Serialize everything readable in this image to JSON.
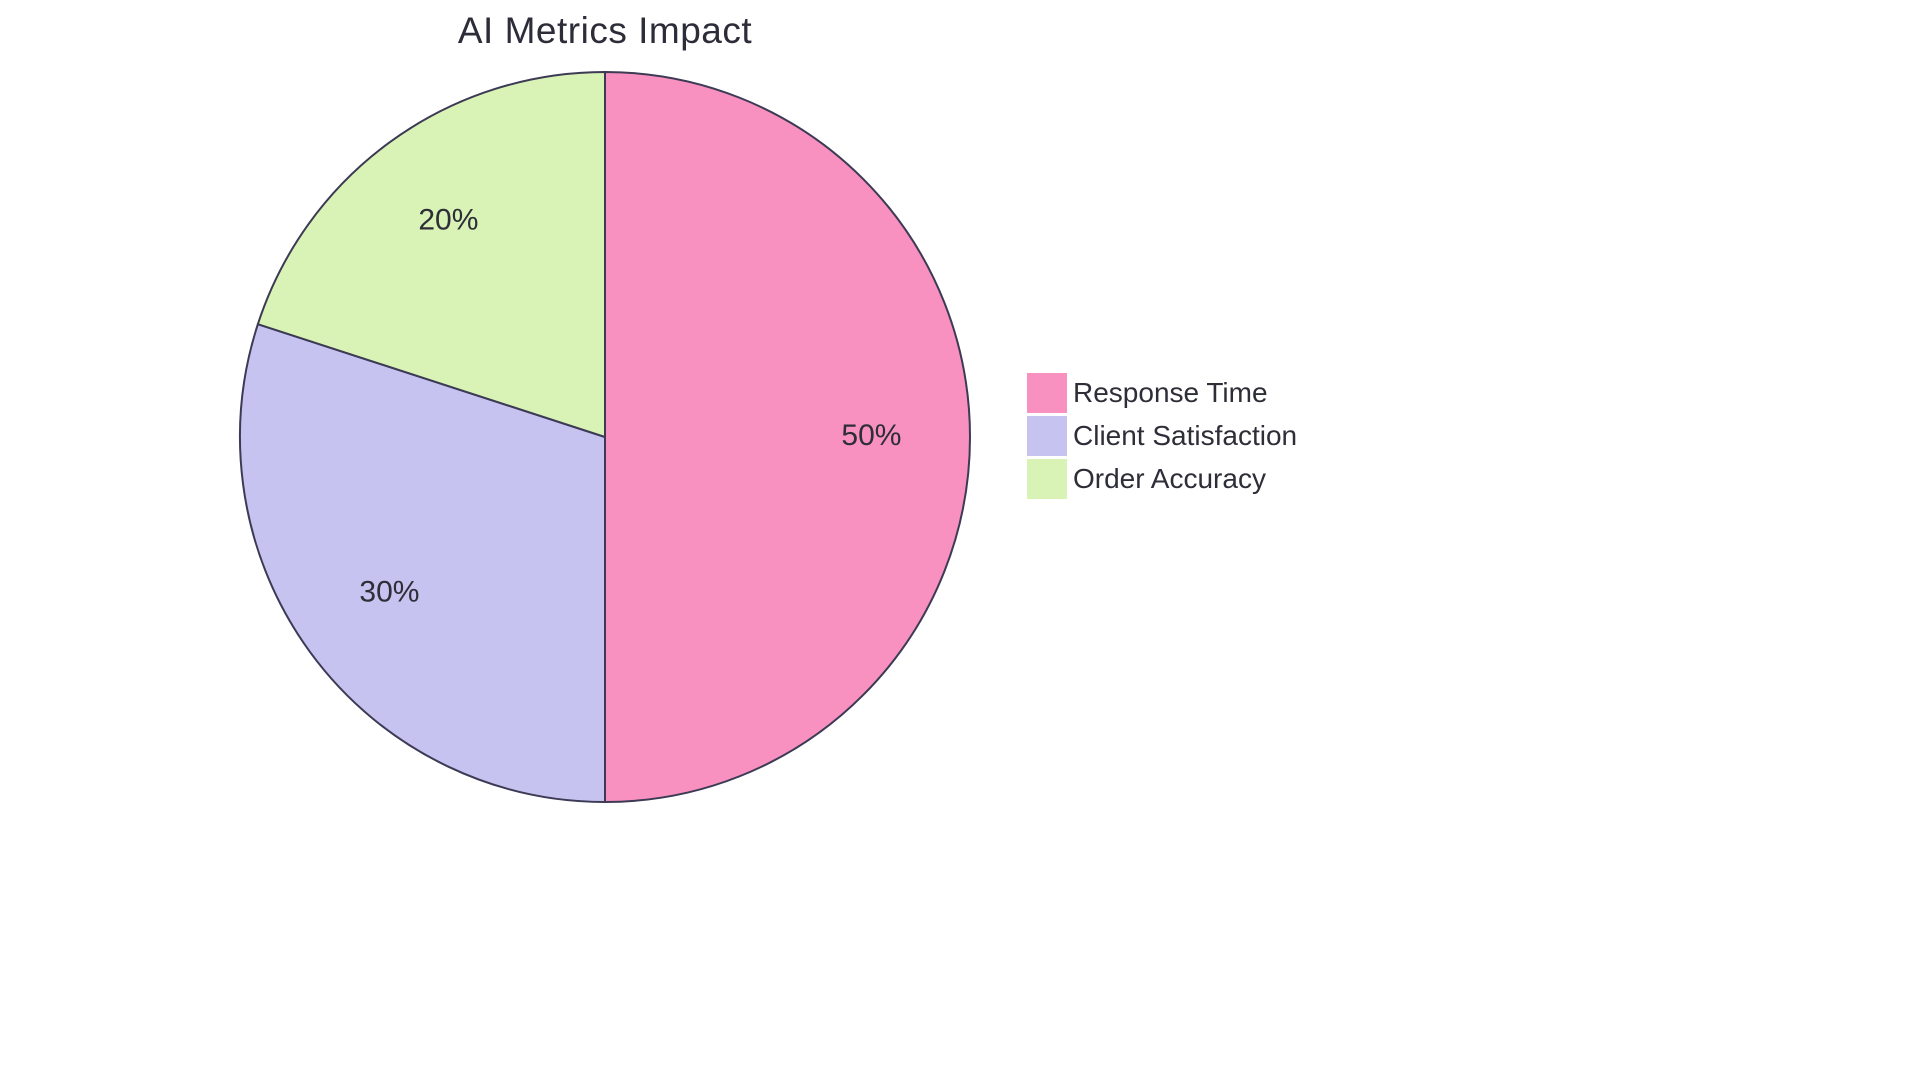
{
  "chart_data": {
    "type": "pie",
    "title": "AI Metrics Impact",
    "labels": [
      "Response Time",
      "Client Satisfaction",
      "Order Accuracy"
    ],
    "values": [
      50,
      30,
      20
    ],
    "slice_labels": [
      "50%",
      "30%",
      "20%"
    ],
    "colors": [
      "#F891BF",
      "#C6C3F0",
      "#D8F3B5"
    ],
    "stroke_color": "#3c3a54",
    "text_color": "#2e2e38",
    "legend_position": "right",
    "start_angle_deg": 0,
    "direction": "clockwise"
  }
}
